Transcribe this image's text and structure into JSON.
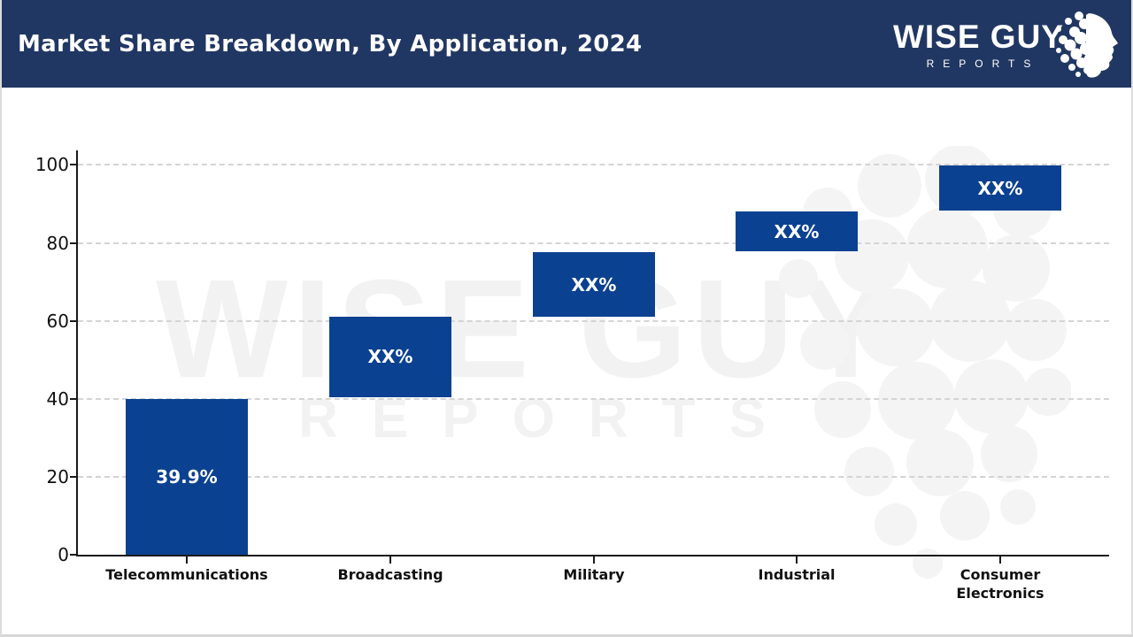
{
  "header": {
    "title": "Market Share Breakdown, By Application, 2024",
    "bg_color": "#213763",
    "logo": {
      "name": "Wise Guy Reports",
      "line1": "WISE GUY",
      "line2": "REPORTS"
    }
  },
  "watermark": {
    "line1": "WISE GUY",
    "line2": "REPORTS"
  },
  "chart_data": {
    "type": "bar",
    "variant": "floating-waterfall",
    "title": "Market Share Breakdown, By Application, 2024",
    "xlabel": "",
    "ylabel": "",
    "ylim": [
      0,
      100
    ],
    "y_ticks": [
      0,
      20,
      40,
      60,
      80,
      100
    ],
    "grid": "horizontal-dashed",
    "legend": "none",
    "bar_color": "#0b4191",
    "value_label_color": "#ffffff",
    "categories": [
      "Telecommunications",
      "Broadcasting",
      "Military",
      "Industrial",
      "Consumer\nElectronics"
    ],
    "segments": [
      {
        "category": "Telecommunications",
        "start": 0,
        "end": 39.9,
        "label": "39.9%"
      },
      {
        "category": "Broadcasting",
        "start": 40.5,
        "end": 61.0,
        "label": "XX%"
      },
      {
        "category": "Military",
        "start": 61.0,
        "end": 77.6,
        "label": "XX%"
      },
      {
        "category": "Industrial",
        "start": 77.8,
        "end": 88.0,
        "label": "XX%"
      },
      {
        "category": "Consumer Electronics",
        "start": 88.2,
        "end": 99.8,
        "label": "XX%"
      }
    ]
  }
}
